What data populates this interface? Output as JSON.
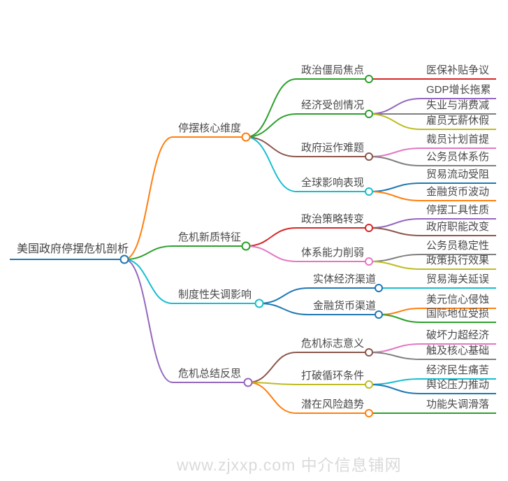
{
  "page": {
    "background": "#ffffff"
  },
  "watermark": {
    "text": "www.zjxxp.com 中介信息铺网",
    "color": "#dadada"
  },
  "mindmap": {
    "title": "美国政府停摆危机剖析",
    "palette": [
      "#1f77b4",
      "#ff7f0e",
      "#2ca02c",
      "#d62728",
      "#9467bd",
      "#8c564b",
      "#e377c2",
      "#7f7f7f",
      "#bcbd22",
      "#17becf"
    ],
    "nodes": [
      {
        "label": "美国政府停摆危机剖析",
        "color": "#1f77b4"
      },
      {
        "label": "停摆核心维度",
        "color": "#ff7f0e"
      },
      {
        "label": "政治僵局焦点",
        "color": "#2ca02c"
      },
      {
        "label": "医保补贴争议",
        "color": "#d62728"
      },
      {
        "label": "经济受创情况",
        "color": "#2ca02c"
      },
      {
        "label": "GDP增长拖累",
        "color": "#9467bd"
      },
      {
        "label": "失业与消费减",
        "color": "#7f7f7f"
      },
      {
        "label": "雇员无薪休假",
        "color": "#bcbd22"
      },
      {
        "label": "政府运作难题",
        "color": "#8c564b"
      },
      {
        "label": "裁员计划首提",
        "color": "#e377c2"
      },
      {
        "label": "公务员体系伤",
        "color": "#7f7f7f"
      },
      {
        "label": "全球影响表现",
        "color": "#17becf"
      },
      {
        "label": "贸易流动受阻",
        "color": "#1f77b4"
      },
      {
        "label": "金融货币波动",
        "color": "#ff7f0e"
      },
      {
        "label": "危机新质特征",
        "color": "#2ca02c"
      },
      {
        "label": "政治策略转变",
        "color": "#d62728"
      },
      {
        "label": "停摆工具性质",
        "color": "#9467bd"
      },
      {
        "label": "政府职能改变",
        "color": "#8c564b"
      },
      {
        "label": "体系能力削弱",
        "color": "#e377c2"
      },
      {
        "label": "公务员稳定性",
        "color": "#7f7f7f"
      },
      {
        "label": "政策执行效果",
        "color": "#bcbd22"
      },
      {
        "label": "制度性失调影响",
        "color": "#17becf"
      },
      {
        "label": "实体经济渠道",
        "color": "#1f77b4"
      },
      {
        "label": "贸易海关延误",
        "color": "#17becf"
      },
      {
        "label": "金融货币渠道",
        "color": "#1f77b4"
      },
      {
        "label": "美元信心侵蚀",
        "color": "#ff7f0e"
      },
      {
        "label": "国际地位受损",
        "color": "#2ca02c"
      },
      {
        "label": "危机总结反思",
        "color": "#9467bd"
      },
      {
        "label": "危机标志意义",
        "color": "#8c564b"
      },
      {
        "label": "破坏力超经济",
        "color": "#e377c2"
      },
      {
        "label": "触及核心基础",
        "color": "#7f7f7f"
      },
      {
        "label": "打破循环条件",
        "color": "#bcbd22"
      },
      {
        "label": "经济民生痛苦",
        "color": "#17becf"
      },
      {
        "label": "舆论压力推动",
        "color": "#1f77b4"
      },
      {
        "label": "潜在风险趋势",
        "color": "#ff7f0e"
      },
      {
        "label": "功能失调滑落",
        "color": "#2ca02c"
      }
    ]
  }
}
